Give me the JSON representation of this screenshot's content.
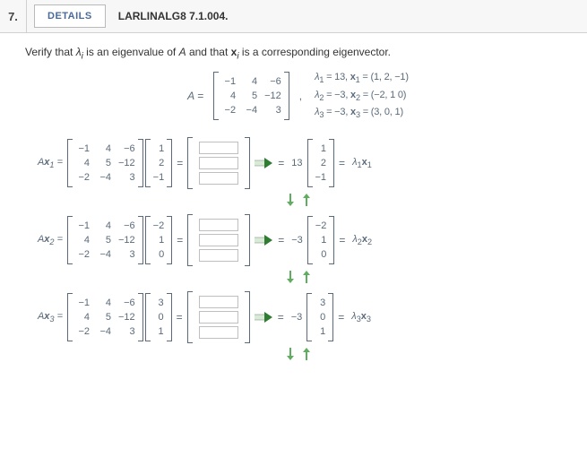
{
  "header": {
    "question_number": "7.",
    "details_label": "DETAILS",
    "assignment_id": "LARLINALG8 7.1.004."
  },
  "prompt": {
    "text_before": "Verify that ",
    "lambda": "λ",
    "sub_i": "i",
    "text_mid": " is an eigenvalue of ",
    "A": "A",
    "text_mid2": " and that ",
    "x": "x",
    "text_after": " is a corresponding eigenvector."
  },
  "matrix_A": {
    "label": "A =",
    "rows": [
      [
        "−1",
        "4",
        "−6"
      ],
      [
        "4",
        "5",
        "−12"
      ],
      [
        "−2",
        "−4",
        "3"
      ]
    ],
    "colors": {
      "text": "#5a6a7a",
      "bracket": "#5a6a7a"
    }
  },
  "eigenpairs": [
    {
      "lambda_label": "λ",
      "idx": "1",
      "val": "13",
      "x_label": "x",
      "vec": "(1, 2, −1)"
    },
    {
      "lambda_label": "λ",
      "idx": "2",
      "val": "−3",
      "x_label": "x",
      "vec": "(−2, 1 0)"
    },
    {
      "lambda_label": "λ",
      "idx": "3",
      "val": "−3",
      "x_label": "x",
      "vec": "(3, 0, 1)"
    }
  ],
  "work": [
    {
      "lhs": "Ax",
      "idx": "1",
      "vec": [
        "1",
        "2",
        "−1"
      ],
      "scalar": "13",
      "resvec": [
        "1",
        "2",
        "−1"
      ],
      "rhs_lambda": "λ",
      "rhs_x": "x"
    },
    {
      "lhs": "Ax",
      "idx": "2",
      "vec": [
        "−2",
        "1",
        "0"
      ],
      "scalar": "−3",
      "resvec": [
        "−2",
        "1",
        "0"
      ],
      "rhs_lambda": "λ",
      "rhs_x": "x"
    },
    {
      "lhs": "Ax",
      "idx": "3",
      "vec": [
        "3",
        "0",
        "1"
      ],
      "scalar": "−3",
      "resvec": [
        "3",
        "0",
        "1"
      ],
      "rhs_lambda": "λ",
      "rhs_x": "x"
    }
  ],
  "style": {
    "hint_arrow_color": "#5fae5f",
    "step_arrow_color": "#5fae5f",
    "step_arrow_head": "#2e7d32",
    "accent_link": "#4a6a9a",
    "math_color": "#5a6a7a"
  }
}
